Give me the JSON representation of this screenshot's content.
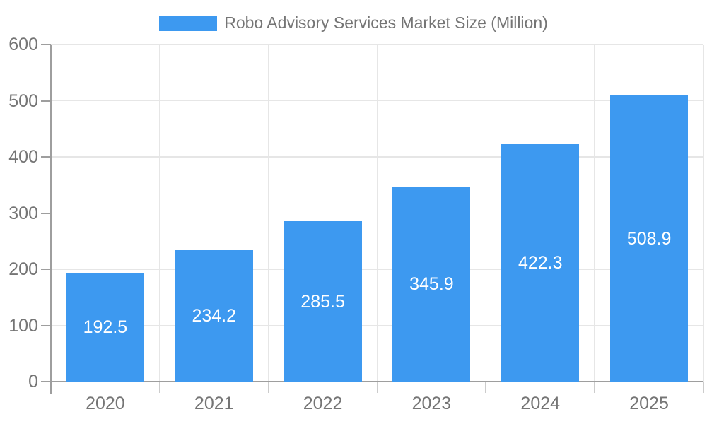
{
  "chart_data": {
    "type": "bar",
    "title": "Robo Advisory Services Market Size (Million)",
    "categories": [
      "2020",
      "2021",
      "2022",
      "2023",
      "2024",
      "2025"
    ],
    "series": [
      {
        "name": "Robo Advisory Services Market Size (Million)",
        "values": [
          192.5,
          234.2,
          285.5,
          345.9,
          422.3,
          508.9
        ]
      }
    ],
    "value_labels": [
      "192.5",
      "234.2",
      "285.5",
      "345.9",
      "422.3",
      "508.9"
    ],
    "ylim": [
      0,
      600
    ],
    "yticks": [
      0,
      100,
      200,
      300,
      400,
      500,
      600
    ],
    "grid": true,
    "legend_position": "top",
    "colors": {
      "bar": "#3D99F0",
      "value_label": "#FFFFFF",
      "axis": "#9E9E9E",
      "grid": "#E6E6E6",
      "boundary_tick": "#CCCCCC",
      "text": "#757575"
    }
  }
}
